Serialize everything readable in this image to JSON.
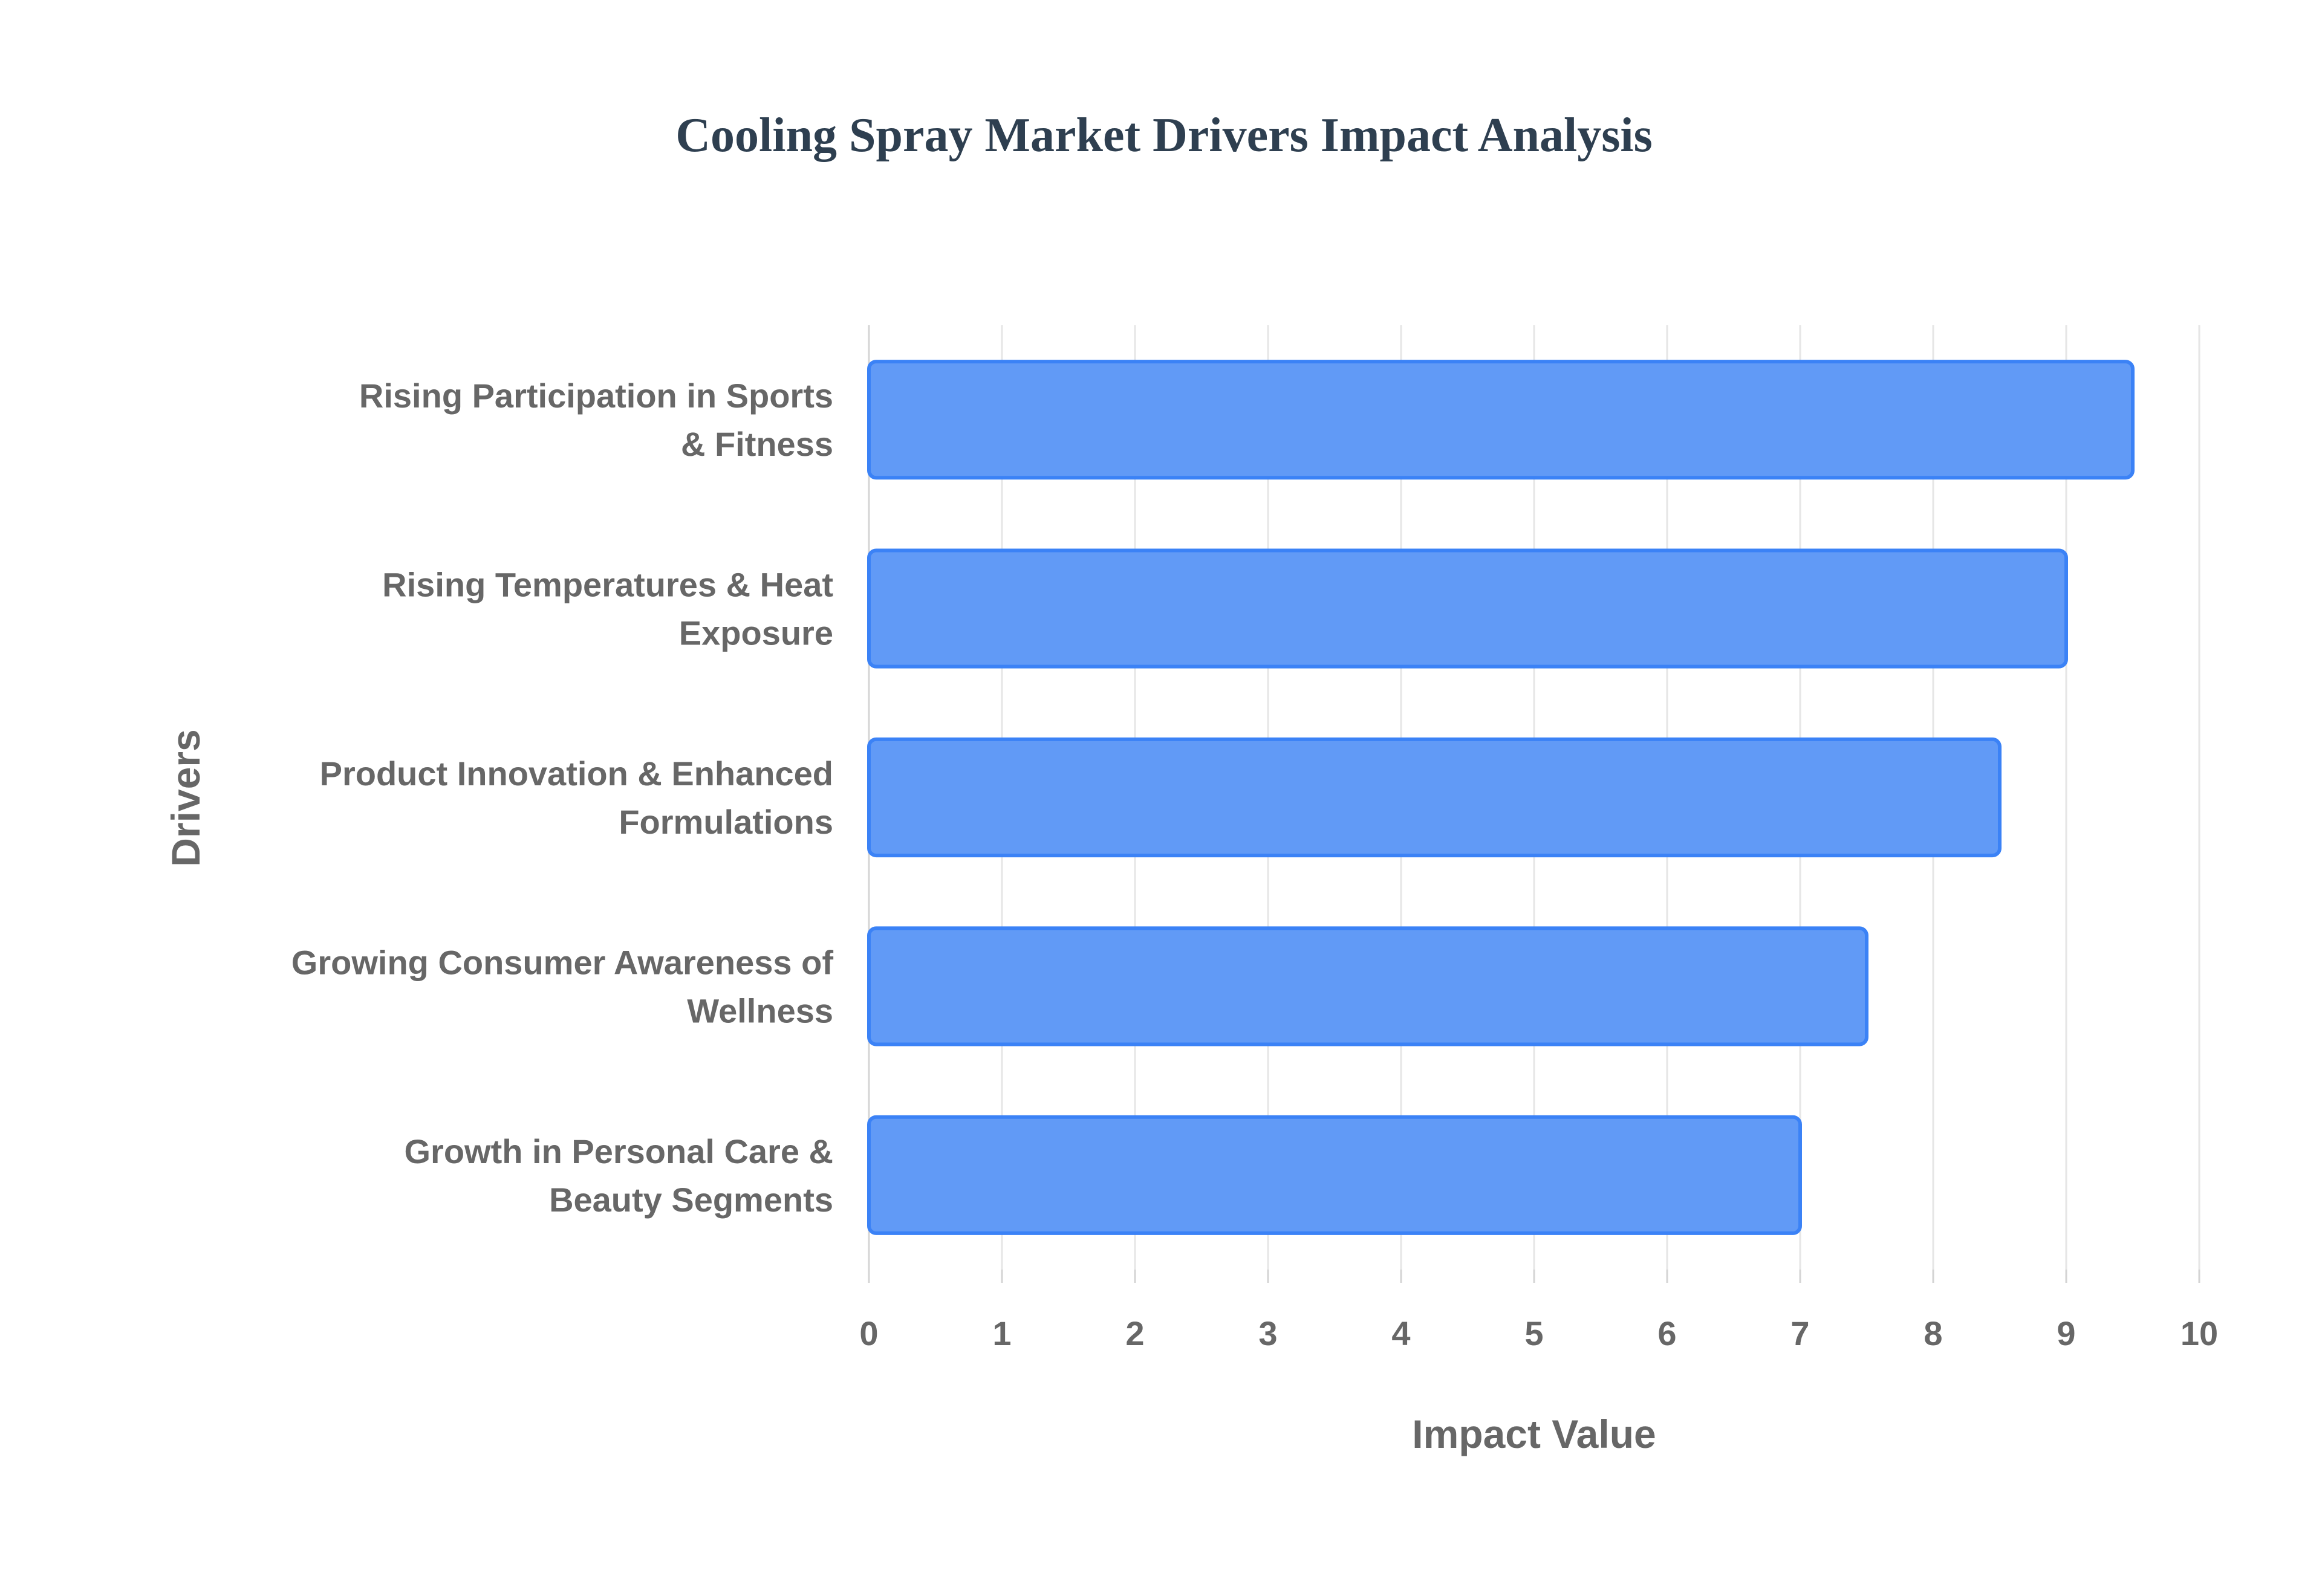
{
  "chart_data": {
    "type": "bar",
    "orientation": "horizontal",
    "title": "Cooling Spray Market Drivers Impact Analysis",
    "xlabel": "Impact Value",
    "ylabel": "Drivers",
    "xlim": [
      0,
      10
    ],
    "x_ticks": [
      "0",
      "1",
      "2",
      "3",
      "4",
      "5",
      "6",
      "7",
      "8",
      "9",
      "10"
    ],
    "grid": true,
    "legend": "none",
    "categories": [
      [
        "Rising Participation in Sports",
        "& Fitness"
      ],
      [
        "Rising Temperatures & Heat",
        "Exposure"
      ],
      [
        "Product Innovation & Enhanced",
        "Formulations"
      ],
      [
        "Growing Consumer Awareness of",
        "Wellness"
      ],
      [
        "Growth in Personal Care &",
        "Beauty Segments"
      ]
    ],
    "values": [
      9.5,
      9.0,
      8.5,
      7.5,
      7.0
    ],
    "colors": {
      "bar_fill": "#619af6",
      "bar_stroke": "#3b82f6",
      "title": "#2e3f50",
      "label": "#676767",
      "grid": "#e6e6e6"
    }
  }
}
